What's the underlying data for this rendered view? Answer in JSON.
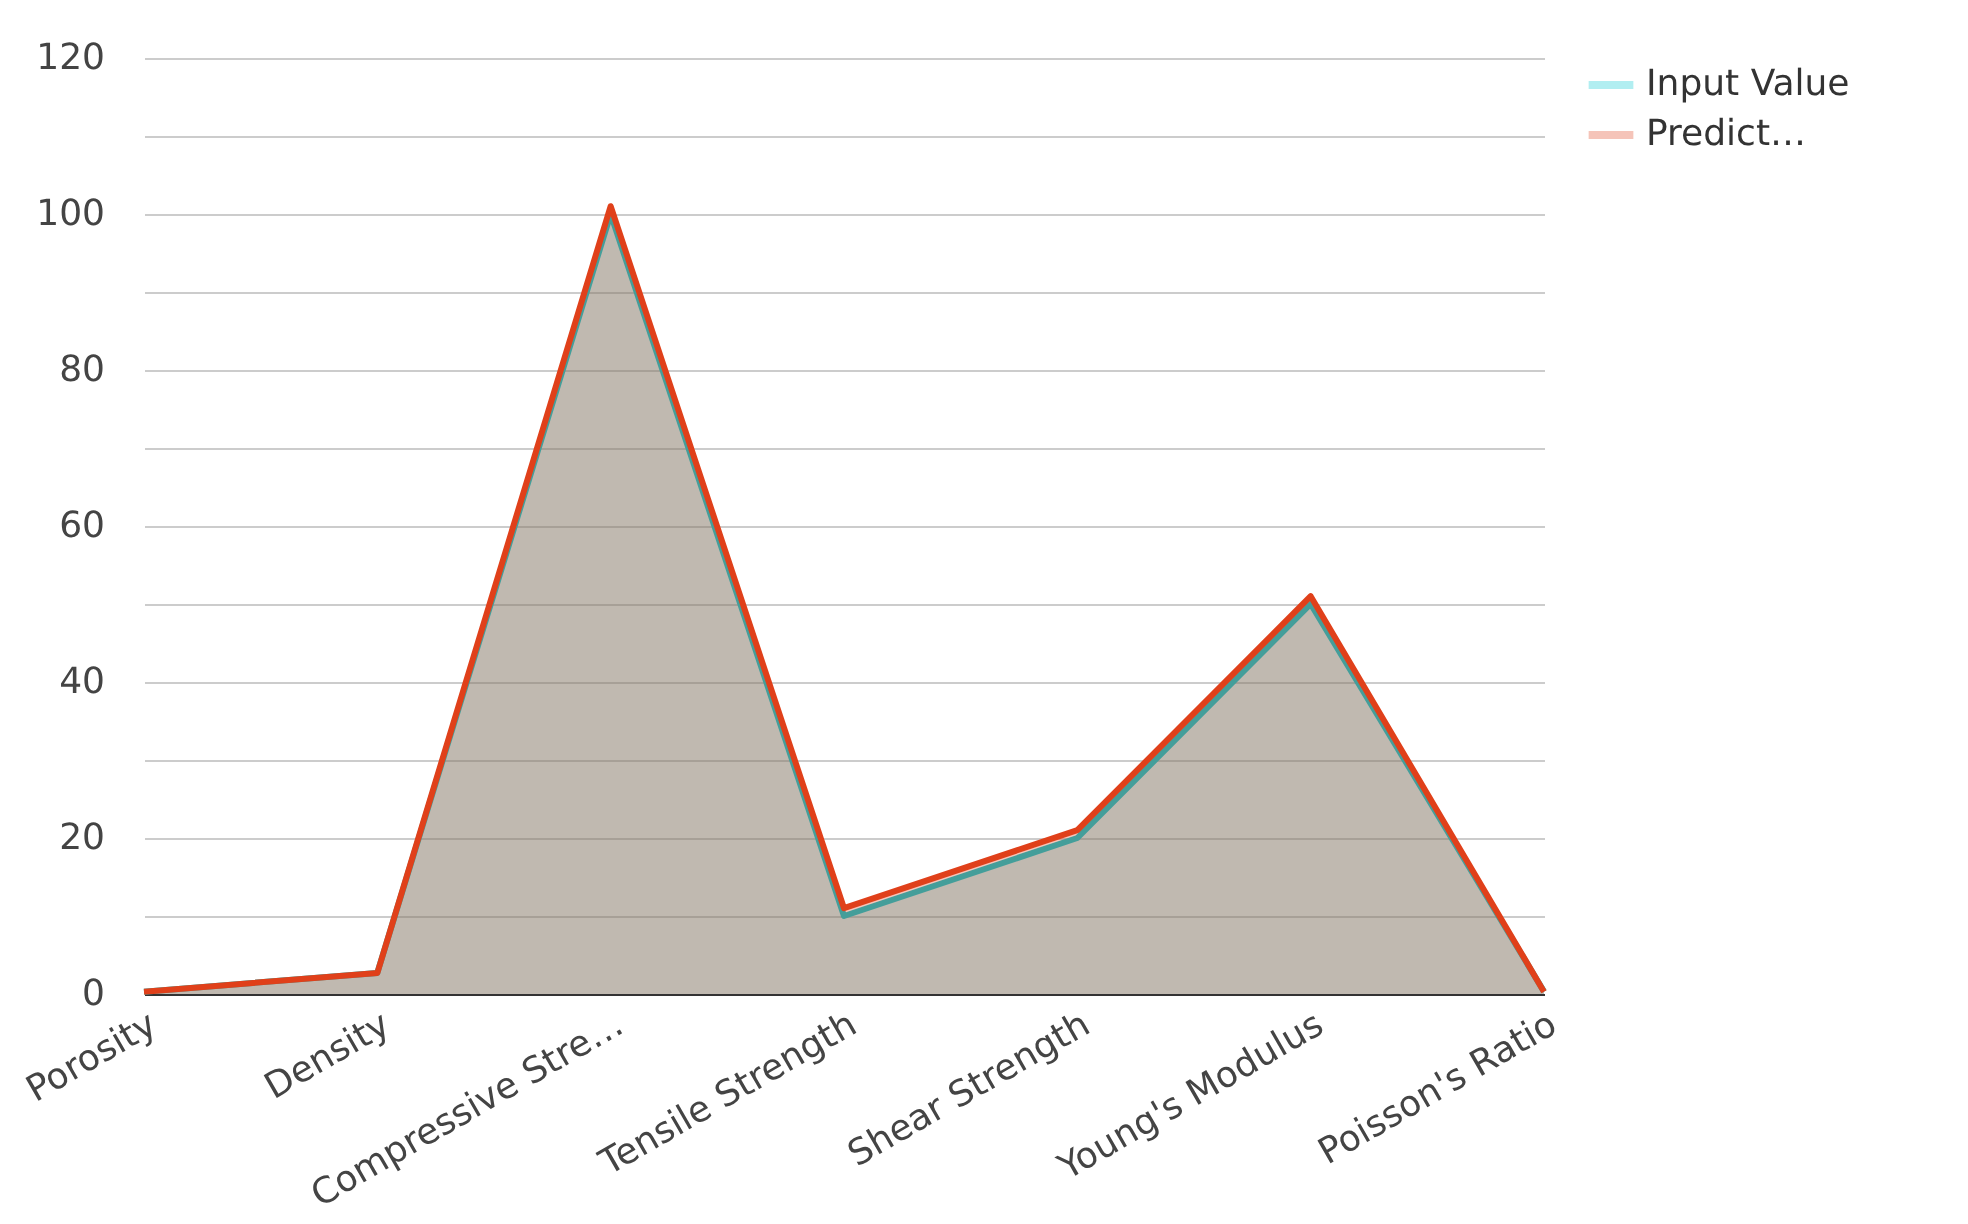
{
  "chart_data": {
    "type": "area",
    "categories": [
      "Porosity",
      "Density",
      "Compressive Stre…",
      "Tensile Strength",
      "Shear Strength",
      "Young's Modulus",
      "Poisson's Ratio"
    ],
    "series": [
      {
        "name": "Input Value",
        "color": "#00c8d2",
        "values": [
          0.3,
          2.7,
          100,
          10,
          20,
          50,
          0.3
        ]
      },
      {
        "name": "Predict…",
        "color": "#e0401a",
        "values": [
          0.3,
          2.7,
          101,
          11,
          21,
          51,
          0.3
        ]
      }
    ],
    "ylim": [
      0,
      120
    ],
    "yticks": [
      0,
      {
        "value": 10,
        "label": null
      },
      20,
      {
        "value": 30,
        "label": null
      },
      40,
      {
        "value": 50,
        "label": null
      },
      60,
      {
        "value": 70,
        "label": null
      },
      80,
      {
        "value": 90,
        "label": null
      },
      100,
      {
        "value": 110,
        "label": null
      },
      120
    ],
    "grid": "y",
    "legend": "right"
  }
}
